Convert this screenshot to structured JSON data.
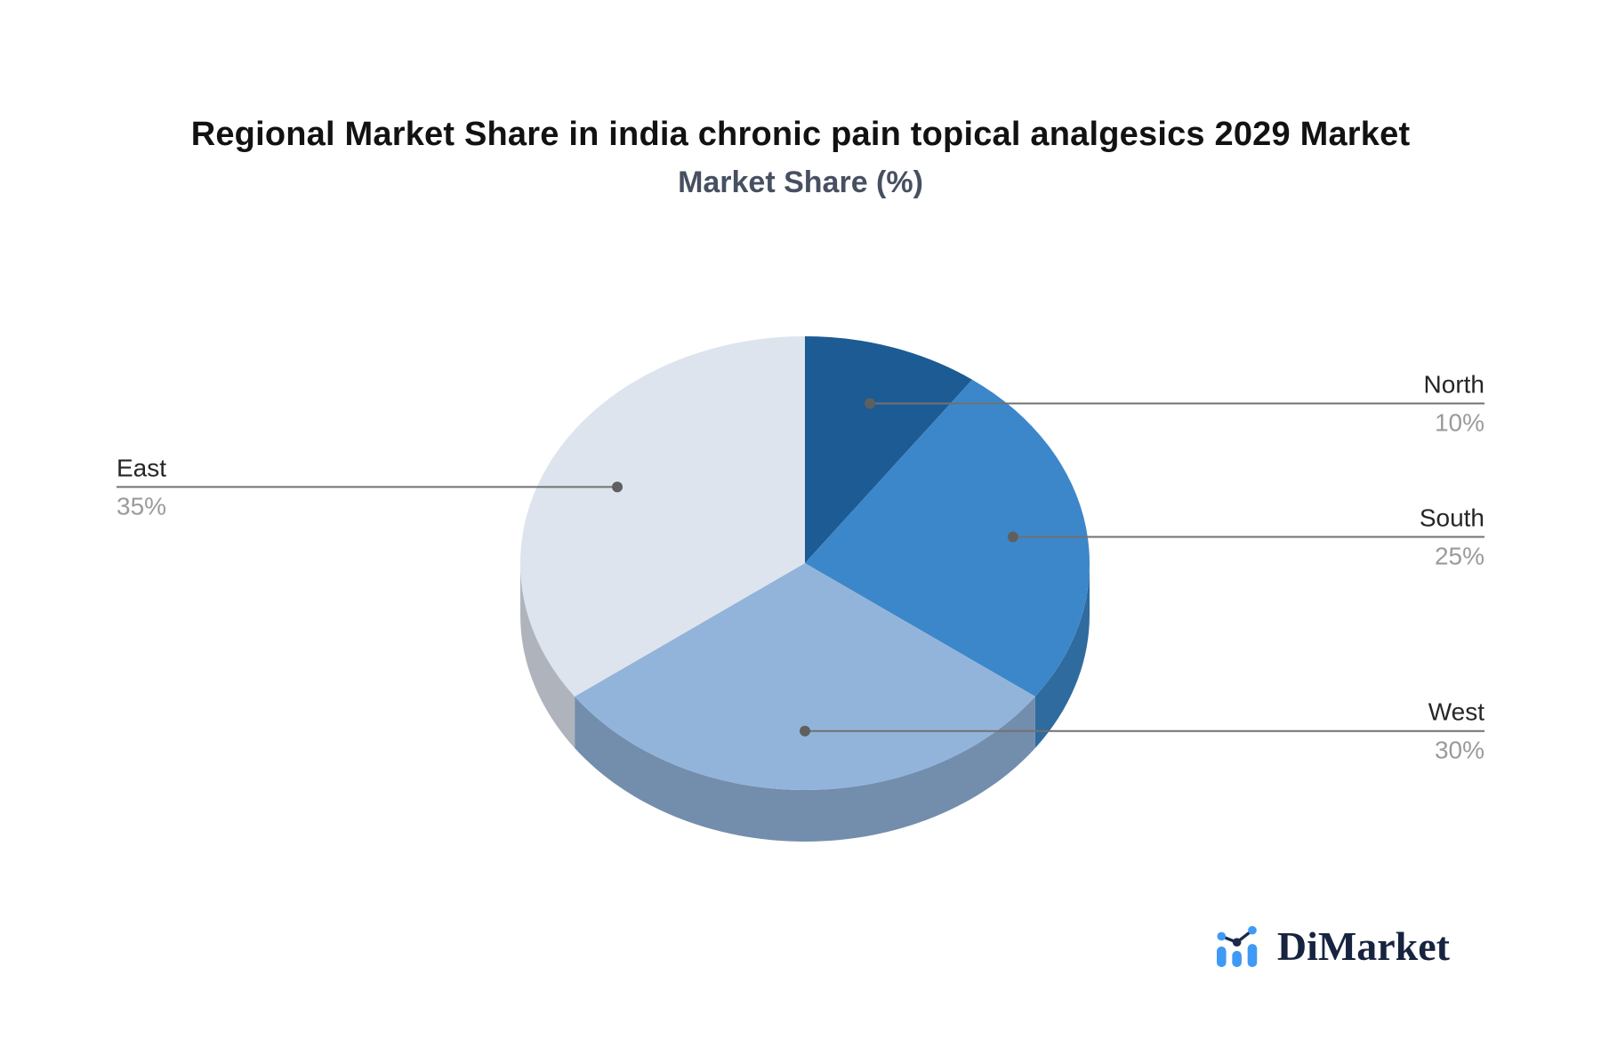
{
  "header": {
    "title": "Regional Market Share in india chronic pain topical analgesics 2029 Market",
    "subtitle": "Market Share (%)"
  },
  "chart_data": {
    "type": "pie",
    "style": "3d",
    "title": "Market Share (%)",
    "unit": "%",
    "direction": "clockwise",
    "start_angle_deg": 0,
    "slices": [
      {
        "label": "North",
        "value": 10,
        "color": "#1d5b94"
      },
      {
        "label": "South",
        "value": 25,
        "color": "#3c87c9"
      },
      {
        "label": "West",
        "value": 30,
        "color": "#92b4da"
      },
      {
        "label": "East",
        "value": 35,
        "color": "#dde4ee"
      }
    ],
    "callout_labels": [
      {
        "label": "North",
        "pct_text": "10%",
        "side": "right"
      },
      {
        "label": "South",
        "pct_text": "25%",
        "side": "right"
      },
      {
        "label": "West",
        "pct_text": "30%",
        "side": "right"
      },
      {
        "label": "East",
        "pct_text": "35%",
        "side": "left"
      }
    ],
    "palette": {
      "callout_line_color": "#717171",
      "callout_dot_color": "#5f5f5f",
      "label_name_color": "#262626",
      "label_pct_color": "#9b9b9b",
      "title_color": "#121212",
      "subtitle_color": "#475060",
      "background": "#ffffff"
    },
    "legend": "none",
    "grid": false
  },
  "logo": {
    "text": "DiMarket",
    "text_color": "#172440",
    "icon_bar_color": "#3f9af5",
    "icon_line_color": "#1b2a4a"
  }
}
